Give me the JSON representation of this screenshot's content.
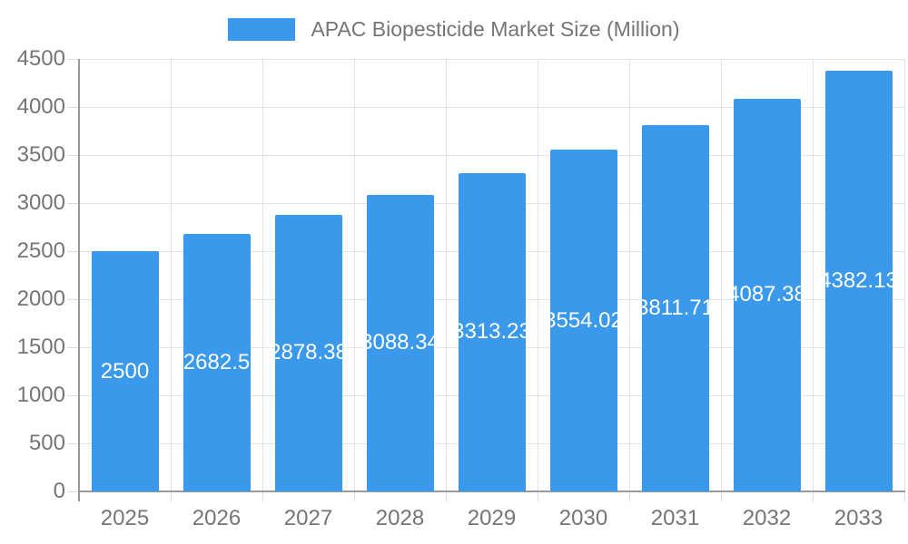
{
  "legend": {
    "label": "APAC Biopesticide Market Size (Million)"
  },
  "chart_data": {
    "type": "bar",
    "title": "APAC Biopesticide Market Size (Million)",
    "categories": [
      "2025",
      "2026",
      "2027",
      "2028",
      "2029",
      "2030",
      "2031",
      "2032",
      "2033"
    ],
    "values": [
      2500,
      2682.5,
      2878.38,
      3088.34,
      3313.23,
      3554.02,
      3811.71,
      4087.38,
      4382.13
    ],
    "value_labels": [
      "2500",
      "2682.5",
      "2878.38",
      "3088.34",
      "3313.23",
      "3554.02",
      "3811.71",
      "4087.38",
      "4382.13"
    ],
    "xlabel": "",
    "ylabel": "",
    "ylim": [
      0,
      4500
    ],
    "ytick_step": 500,
    "ytick_labels": [
      "0",
      "500",
      "1000",
      "1500",
      "2000",
      "2500",
      "3000",
      "3500",
      "4000",
      "4500"
    ],
    "grid": true,
    "legend_position": "top-center",
    "colors": {
      "bar": "#3B99EC",
      "grid": "#E3E3E3",
      "axis": "#9A9A9A",
      "tick": "#DDDDDD",
      "axis_text": "#757575",
      "bar_label_text": "#FFFFFF",
      "background": "#FFFFFF"
    }
  }
}
